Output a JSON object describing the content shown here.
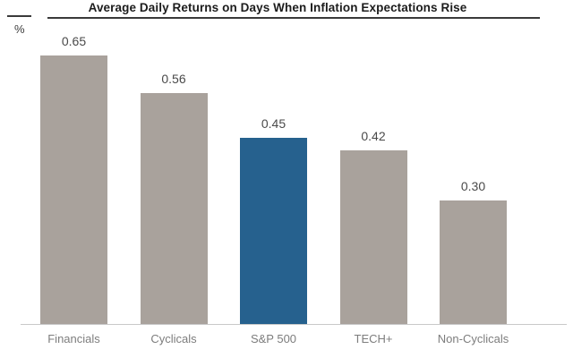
{
  "chart_data": {
    "type": "bar",
    "title": "Average Daily Returns on Days When Inflation Expectations Rise",
    "ylabel": "%",
    "xlabel": "",
    "categories": [
      "Financials",
      "Cyclicals",
      "S&P 500",
      "TECH+",
      "Non-Cyclicals"
    ],
    "values": [
      0.65,
      0.56,
      0.45,
      0.42,
      0.3
    ],
    "value_labels": [
      "0.65",
      "0.56",
      "0.45",
      "0.42",
      "0.30"
    ],
    "bar_colors": [
      "#a9a29c",
      "#a9a29c",
      "#26618e",
      "#a9a29c",
      "#a9a29c"
    ],
    "highlighted_category": "S&P 500",
    "ylim": [
      0,
      0.78
    ],
    "grid": false,
    "legend": null
  },
  "colors": {
    "bar_default": "#a9a29c",
    "bar_highlight": "#26618e",
    "baseline": "#c9c9c9",
    "title_rule": "#3a3a3a",
    "title_text": "#1c1c1c",
    "value_label": "#4a4a4a",
    "category_label": "#7d7d7d",
    "background": "#ffffff"
  }
}
